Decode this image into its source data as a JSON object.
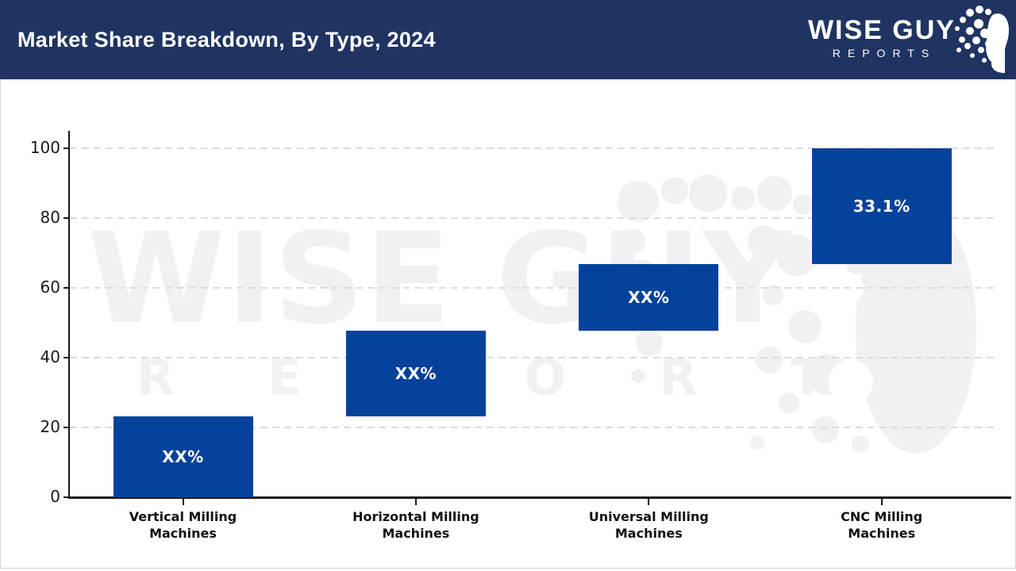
{
  "header": {
    "title": "Market Share Breakdown, By Type, 2024",
    "logo": {
      "name_top": "WISE GUY",
      "name_bottom": "REPORTS"
    }
  },
  "watermark": {
    "text_top": "WISE GUY",
    "text_bottom": "R E P O R T S"
  },
  "chart_data": {
    "type": "bar",
    "subtype": "waterfall",
    "title": "Market Share Breakdown, By Type, 2024",
    "xlabel": "",
    "ylabel": "",
    "ylim": [
      0,
      100
    ],
    "yticks": [
      0,
      20,
      40,
      60,
      80,
      100
    ],
    "grid": "horizontal-dashed",
    "legend": "none",
    "categories": [
      "Vertical Milling Machines",
      "Horizontal Milling Machines",
      "Universal Milling Machines",
      "CNC Milling Machines"
    ],
    "bars": [
      {
        "category": "Vertical Milling Machines",
        "category_lines": [
          "Vertical Milling",
          "Machines"
        ],
        "start": 0,
        "end": 23.2,
        "value": 23.2,
        "label": "XX%"
      },
      {
        "category": "Horizontal Milling Machines",
        "category_lines": [
          "Horizontal Milling",
          "Machines"
        ],
        "start": 23.2,
        "end": 47.7,
        "value": 24.5,
        "label": "XX%"
      },
      {
        "category": "Universal Milling Machines",
        "category_lines": [
          "Universal Milling",
          "Machines"
        ],
        "start": 47.7,
        "end": 66.9,
        "value": 19.2,
        "label": "XX%"
      },
      {
        "category": "CNC Milling Machines",
        "category_lines": [
          "CNC Milling",
          "Machines"
        ],
        "start": 66.9,
        "end": 100,
        "value": 33.1,
        "label": "33.1%"
      }
    ]
  },
  "colors": {
    "header_bg": "#203462",
    "bar": "#05429b",
    "axis": "#1a1a1a",
    "grid": "#dcdcdc",
    "tick_label": "#1a1a1a",
    "category_label": "#111111",
    "bar_label": "#ffffff",
    "watermark": "#f1f1f4",
    "border": "#cfcfcf"
  }
}
